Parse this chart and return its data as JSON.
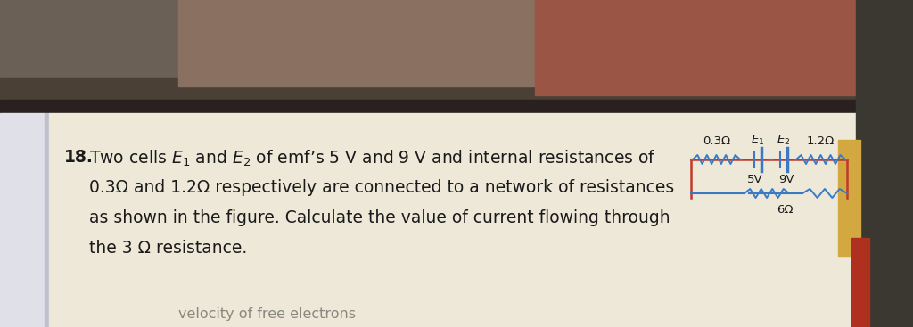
{
  "text_color": "#1a1a1a",
  "question_number": "18.",
  "q_line1": "Two cells $E_1$ and $E_2$ of emf’s 5 V and 9 V and internal resistances of",
  "q_line2": "0.3Ω and 1.2Ω respectively are connected to a network of resistances",
  "q_line3": "as shown in the figure. Calculate the value of current flowing through",
  "q_line4": "the 3 Ω resistance.",
  "wire_color": "#C0392B",
  "comp_color": "#3A7AC5",
  "label_0p3": "0.3Ω",
  "label_E1": "$E_1$",
  "label_E2": "$E_2$",
  "label_1p2": "1.2Ω",
  "label_5V": "5V",
  "label_9V": "9V",
  "label_6ohm": "6Ω",
  "font_size_main": 13.5,
  "font_size_circuit": 9.5,
  "page_color": "#EDE8D8",
  "left_bar_color": "#D4D4DC",
  "photo_color1": "#7A6E60",
  "photo_color2": "#5A5040",
  "right_edge_yellow": "#D4A840",
  "right_edge_red": "#B03020"
}
